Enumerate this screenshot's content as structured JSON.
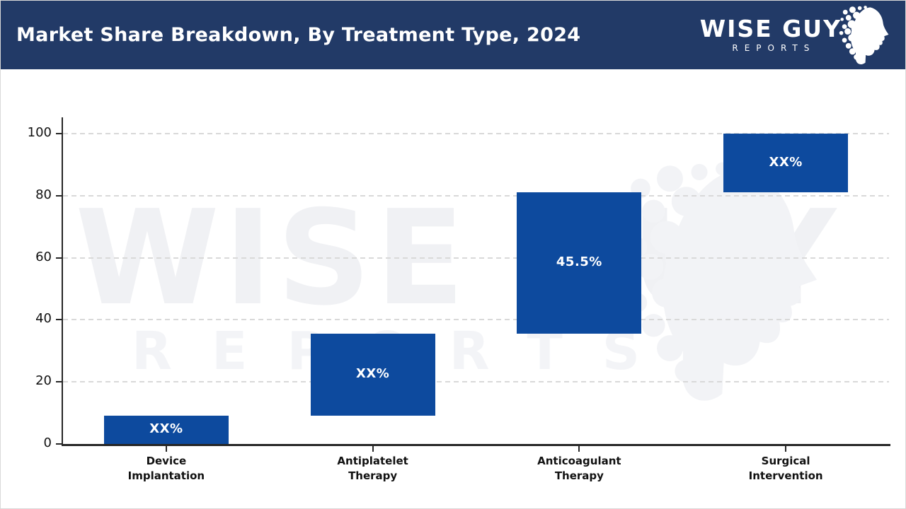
{
  "header": {
    "title": "Market Share Breakdown, By Treatment Type, 2024",
    "logo": {
      "line1": "WISE GUY",
      "line2": "REPORTS"
    }
  },
  "watermark": {
    "line1": "WISE GUY",
    "line2": "REPORTS"
  },
  "colors": {
    "header_bg": "#223a67",
    "bar": "#0d4a9e",
    "axis": "#262626",
    "gridline": "#d9d9d9",
    "watermark": "#f0f1f4",
    "title_text": "#ffffff",
    "bar_label_text": "#ffffff"
  },
  "chart_data": {
    "type": "bar",
    "subtype": "waterfall",
    "title": "Market Share Breakdown, By Treatment Type, 2024",
    "xlabel": "",
    "ylabel": "",
    "categories": [
      "Device Implantation",
      "Antiplatelet Therapy",
      "Anticoagulant Therapy",
      "Surgical Intervention"
    ],
    "category_label_lines": [
      [
        "Device",
        "Implantation"
      ],
      [
        "Antiplatelet",
        "Therapy"
      ],
      [
        "Anticoagulant",
        "Therapy"
      ],
      [
        "Surgical",
        "Intervention"
      ]
    ],
    "values": [
      9,
      26.5,
      45.5,
      19
    ],
    "segments": [
      {
        "category": "Device Implantation",
        "label": "XX%",
        "start": 0,
        "end": 9
      },
      {
        "category": "Antiplatelet Therapy",
        "label": "XX%",
        "start": 9,
        "end": 35.5
      },
      {
        "category": "Anticoagulant Therapy",
        "label": "45.5%",
        "start": 35.5,
        "end": 81
      },
      {
        "category": "Surgical Intervention",
        "label": "XX%",
        "start": 81,
        "end": 100
      }
    ],
    "yticks": [
      0,
      20,
      40,
      60,
      80,
      100
    ],
    "ylim": [
      0,
      105
    ],
    "grid": {
      "axis": "y",
      "style": "dashed"
    },
    "legend": "none",
    "bar_color": "#0d4a9e"
  }
}
